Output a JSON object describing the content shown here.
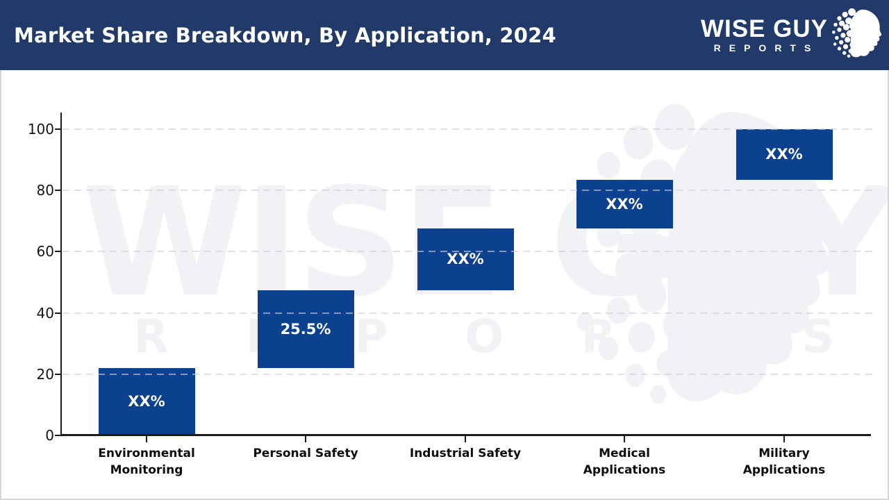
{
  "header": {
    "title": "Market Share Breakdown, By Application, 2024",
    "logo": {
      "brand_line1": "WISE GUY",
      "brand_line2": "REPORTS"
    }
  },
  "watermark": {
    "line1": "WISE GUY",
    "line2": "R E P O R T S"
  },
  "colors": {
    "header_bg": "#213a69",
    "bar_fill": "#0b418e",
    "axis": "#1c1c1c",
    "gridline": "#d9dadf",
    "watermark": "#f1f2f5"
  },
  "chart_data": {
    "type": "bar",
    "variant": "floating-waterfall",
    "title": "Market Share Breakdown, By Application, 2024",
    "xlabel": "",
    "ylabel": "",
    "ylim": [
      0,
      105
    ],
    "yticks": [
      0,
      20,
      40,
      60,
      80,
      100
    ],
    "grid": true,
    "legend": false,
    "categories": [
      "Environmental Monitoring",
      "Personal Safety",
      "Industrial Safety",
      "Medical Applications",
      "Military Applications"
    ],
    "bars": [
      {
        "category": "Environmental Monitoring",
        "start": 0,
        "end": 22,
        "label": "XX%"
      },
      {
        "category": "Personal Safety",
        "start": 22,
        "end": 47.5,
        "label": "25.5%"
      },
      {
        "category": "Industrial Safety",
        "start": 47.5,
        "end": 67.5,
        "label": "XX%"
      },
      {
        "category": "Medical Applications",
        "start": 67.5,
        "end": 83.5,
        "label": "XX%"
      },
      {
        "category": "Military Applications",
        "start": 83.5,
        "end": 100,
        "label": "XX%"
      }
    ],
    "bar_color": "#0b418e",
    "value_label_color": "#ffffff"
  }
}
